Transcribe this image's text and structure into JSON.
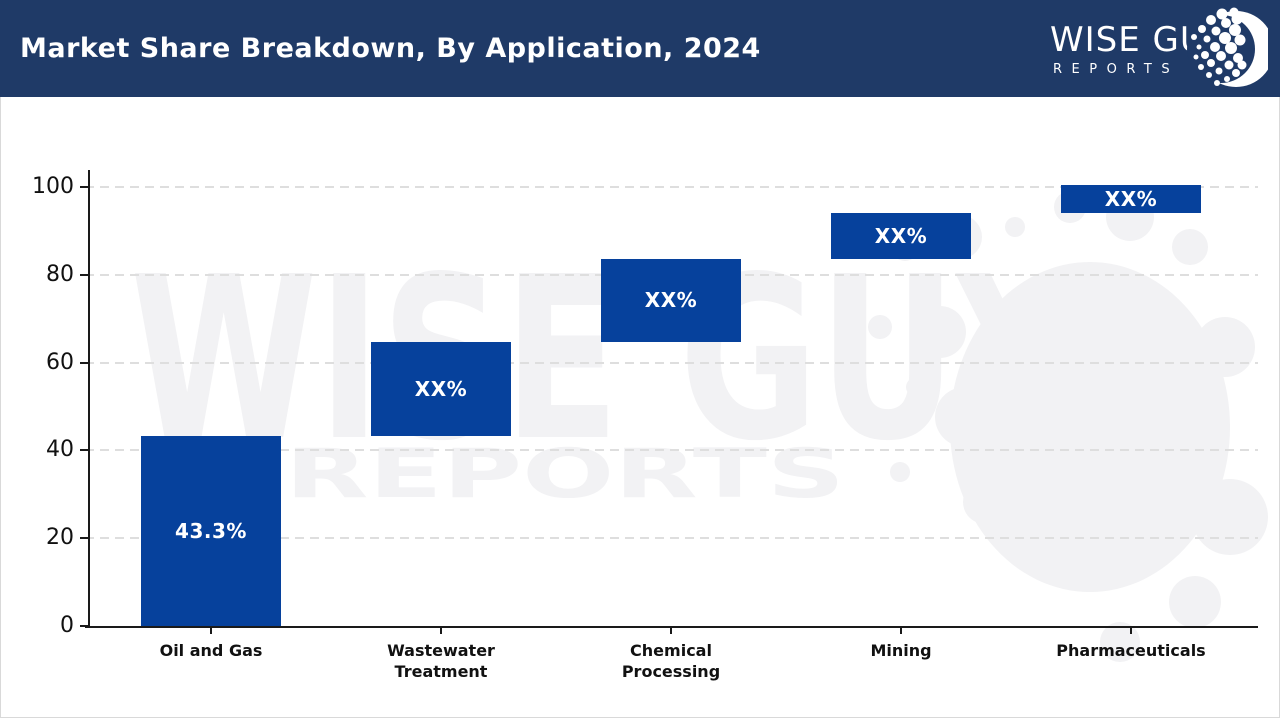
{
  "header": {
    "title": "Market Share Breakdown, By Application, 2024",
    "logo": {
      "brand_line1": "WISE GUY",
      "brand_line2": "REPORTS"
    }
  },
  "watermark": {
    "line1": "WISE GUY",
    "line2": "REPORTS"
  },
  "colors": {
    "header_bg": "#1f3a67",
    "bar_blue": "#06419c",
    "title_text": "#ffffff",
    "gridline": "#dedede",
    "axis": "#1a1a1a",
    "watermark": "#f2f2f4"
  },
  "chart_data": {
    "type": "bar",
    "subtype": "waterfall",
    "title": "Market Share Breakdown, By Application, 2024",
    "categories": [
      "Oil and Gas",
      "Wastewater Treatment",
      "Chemical Processing",
      "Mining",
      "Pharmaceuticals"
    ],
    "category_lines": [
      [
        "Oil and Gas"
      ],
      [
        "Wastewater",
        "Treatment"
      ],
      [
        "Chemical",
        "Processing"
      ],
      [
        "Mining"
      ],
      [
        "Pharmaceuticals"
      ]
    ],
    "segments": [
      {
        "category": "Oil and Gas",
        "start": 0,
        "end": 43.3,
        "label": "43.3%"
      },
      {
        "category": "Wastewater Treatment",
        "start": 43.3,
        "end": 64.8,
        "label": "XX%"
      },
      {
        "category": "Chemical Processing",
        "start": 64.8,
        "end": 83.5,
        "label": "XX%"
      },
      {
        "category": "Mining",
        "start": 83.5,
        "end": 94.1,
        "label": "XX%"
      },
      {
        "category": "Pharmaceuticals",
        "start": 94.1,
        "end": 100.4,
        "label": "XX%"
      }
    ],
    "y_ticks": [
      0,
      20,
      40,
      60,
      80,
      100
    ],
    "ylim": [
      0,
      105
    ],
    "xlabel": "",
    "ylabel": "",
    "grid": "horizontal-dashed",
    "legend": "none",
    "bar_color": "#06419c",
    "value_label_color": "#ffffff"
  }
}
